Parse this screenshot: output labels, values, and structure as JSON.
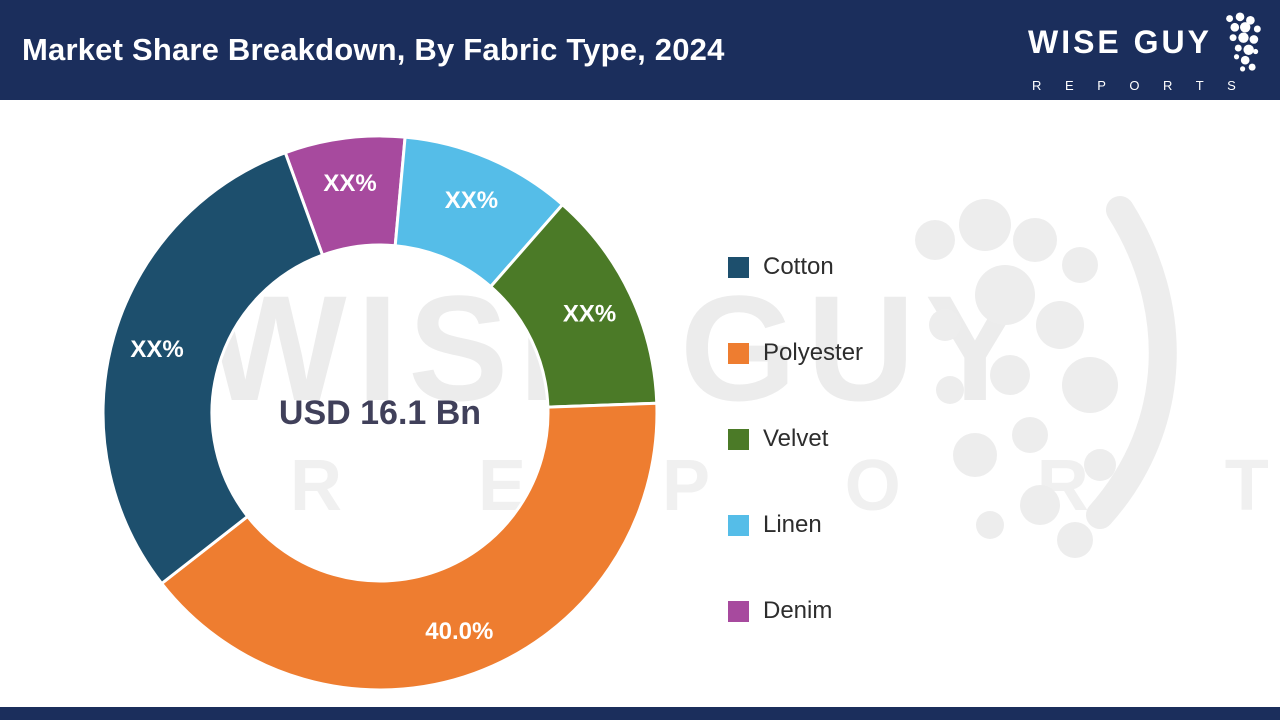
{
  "header": {
    "title": "Market Share Breakdown, By Fabric Type, 2024",
    "logo": {
      "wordmark": "WISE GUY",
      "subtext": "R E P O R T S"
    }
  },
  "colors": {
    "header_bg": "#1b2e5c",
    "footer_bg": "#1b2e5c",
    "center_text": "#40405a",
    "watermark": "#ececec",
    "legend_text": "#2d2d2d"
  },
  "chart_data": {
    "type": "pie",
    "subtype": "donut",
    "title": "Market Share Breakdown, By Fabric Type, 2024",
    "center_label": "USD 16.1 Bn",
    "start_angle_deg": -20,
    "segments": [
      {
        "name": "Denim",
        "label": "XX%",
        "value": 7,
        "color": "#a74a9e"
      },
      {
        "name": "Linen",
        "label": "XX%",
        "value": 10,
        "color": "#55bde8"
      },
      {
        "name": "Velvet",
        "label": "XX%",
        "value": 13,
        "color": "#4b7a27"
      },
      {
        "name": "Polyester",
        "label": "40.0%",
        "value": 40,
        "color": "#ee7d30"
      },
      {
        "name": "Cotton",
        "label": "XX%",
        "value": 30,
        "color": "#1d4f6d"
      }
    ],
    "legend": [
      "Cotton",
      "Polyester",
      "Velvet",
      "Linen",
      "Denim"
    ],
    "legend_position": "right"
  },
  "watermark": {
    "wordmark": "WISE GUY",
    "subtext": "R E P O R T S"
  }
}
